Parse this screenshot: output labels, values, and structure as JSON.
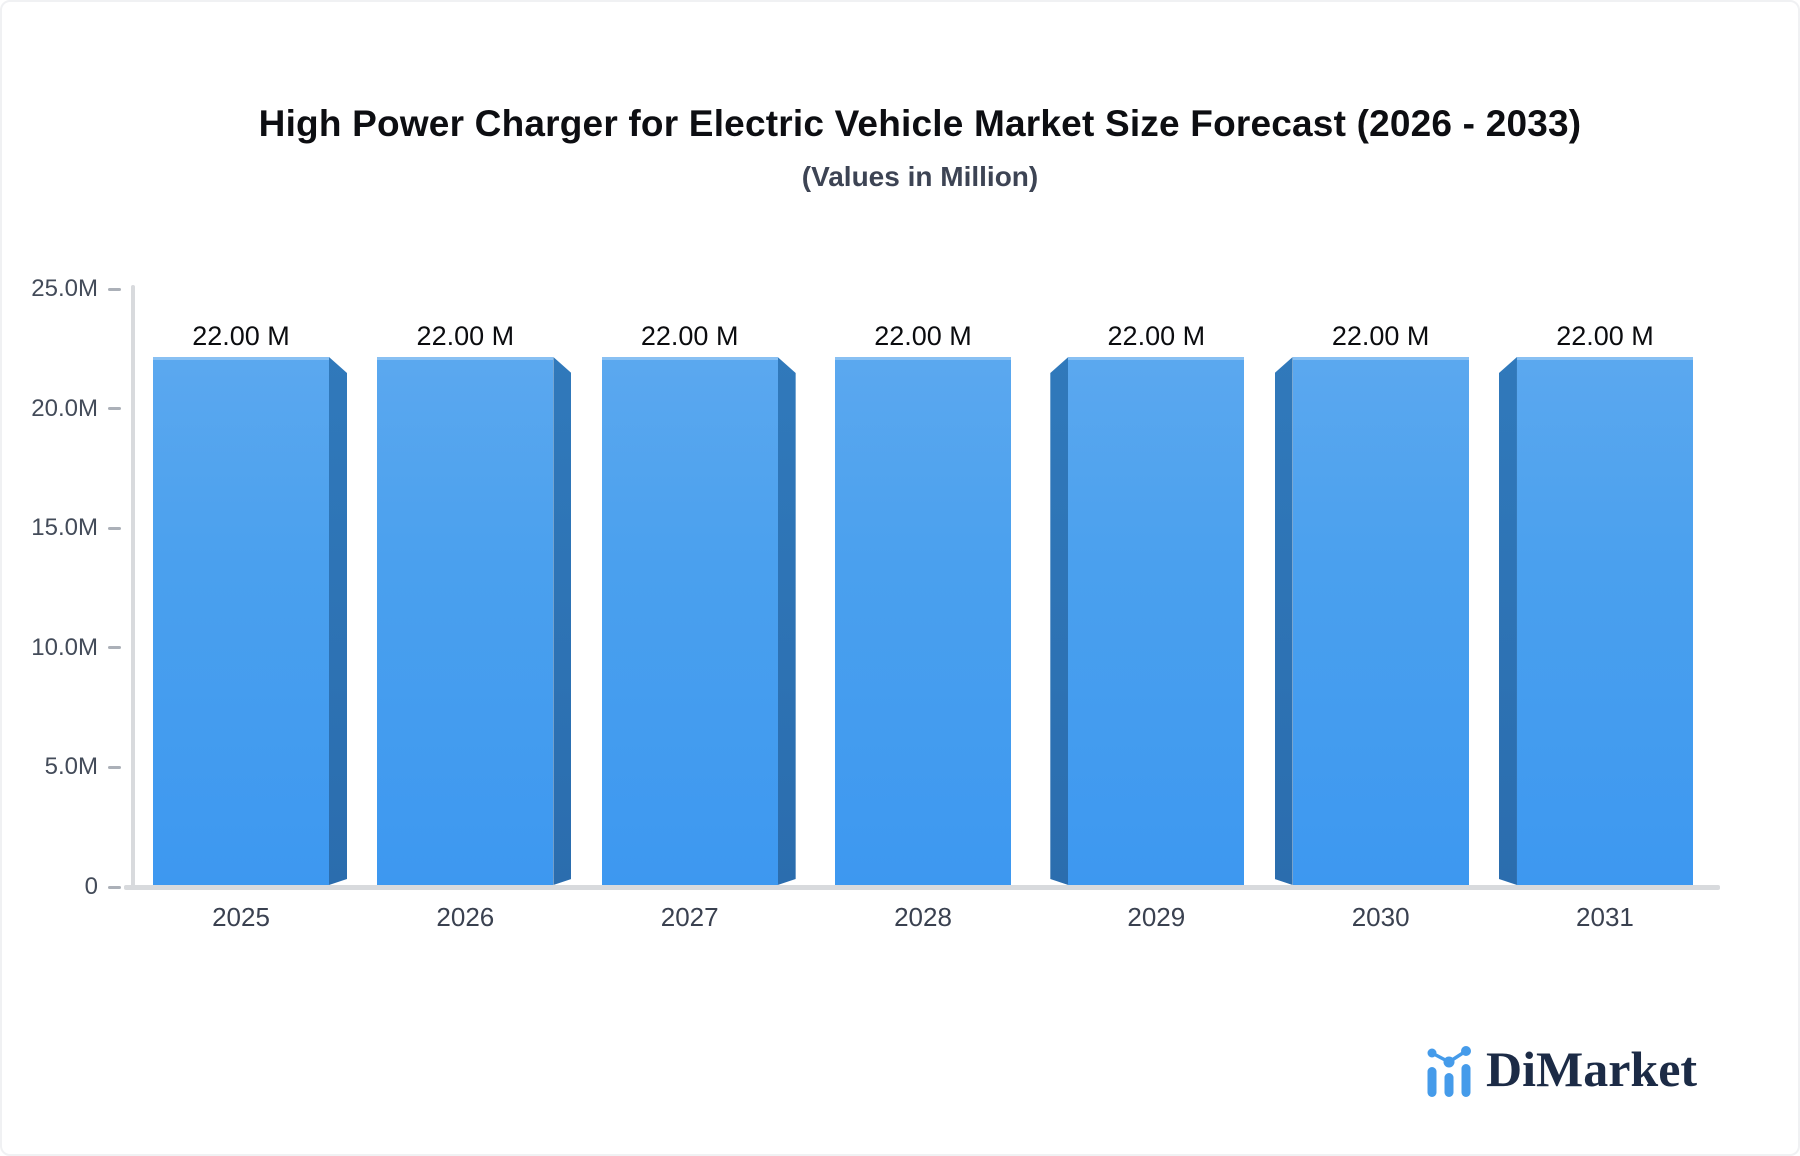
{
  "title": "High Power Charger for Electric Vehicle Market Size Forecast (2026 - 2033)",
  "subtitle": "(Values in Million)",
  "chart_data": {
    "type": "bar",
    "title": "High Power Charger for Electric Vehicle Market Size Forecast (2026 - 2033)",
    "subtitle": "(Values in Million)",
    "unit": "Million",
    "categories": [
      "2025",
      "2026",
      "2027",
      "2028",
      "2029",
      "2030",
      "2031"
    ],
    "values": [
      22,
      22,
      22,
      22,
      22,
      22,
      22
    ],
    "value_labels": [
      "22.00 M",
      "22.00 M",
      "22.00 M",
      "22.00 M",
      "22.00 M",
      "22.00 M",
      "22.00 M"
    ],
    "xlabel": "",
    "ylabel": "",
    "y_axis": {
      "min": 0,
      "max": 25000000,
      "tick_labels": [
        "0",
        "5.0M",
        "10.0M",
        "15.0M",
        "20.0M",
        "25.0M"
      ]
    },
    "grid": false,
    "legend": false,
    "bar_style": {
      "effect": "3d-perspective",
      "face_top_color": "#5BA8EF",
      "face_bottom_color": "#3D98F0",
      "side_color": "#2E76B8",
      "axis_color": "#D8DADD"
    }
  },
  "watermark": {
    "text": "DiMarket",
    "icon": "dimarket-chart-icon",
    "icon_color": "#459BEA",
    "text_color": "#1C2B46"
  }
}
